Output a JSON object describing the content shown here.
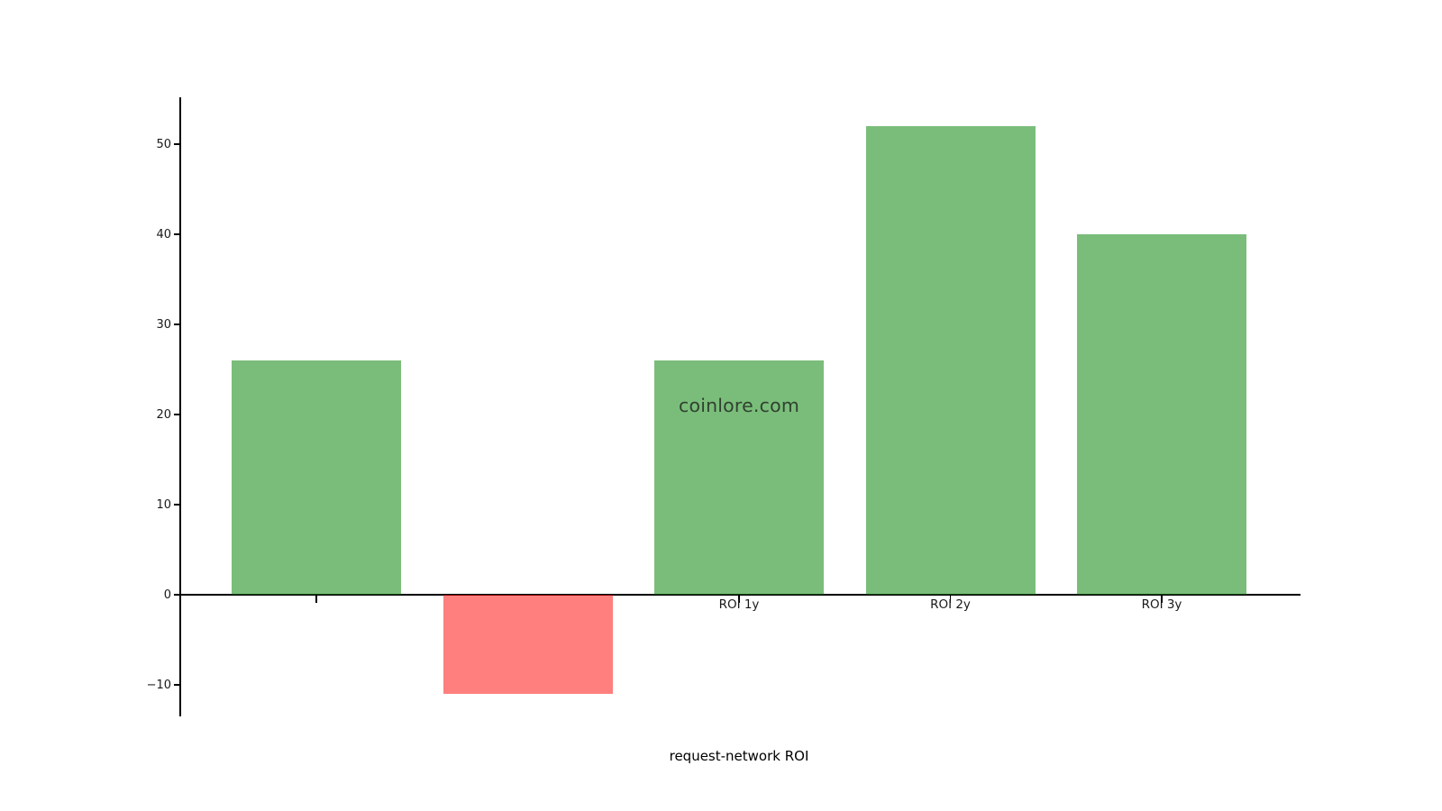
{
  "chart_data": {
    "type": "bar",
    "title": "request-network ROI",
    "watermark": "coinlore.com",
    "categories": [
      "",
      "",
      "ROI 1y",
      "ROI 2y",
      "ROI 3y"
    ],
    "values": [
      26,
      -11,
      26,
      52,
      40
    ],
    "xlabel": "",
    "ylabel": "",
    "ylim": [
      -14.2,
      55.2
    ],
    "grid": false,
    "legend": "none",
    "yticks": {
      "values": [
        50,
        40,
        30,
        20,
        10,
        0,
        -10
      ],
      "labels": [
        "50",
        "40",
        "30",
        "20",
        "10",
        "0",
        "−10"
      ]
    },
    "colors": {
      "positive_bar": "rgba(0, 128, 0, 0.52)",
      "negative_bar": "rgba(255, 0, 0, 0.5)",
      "positive_hex_on_white": "#7dbf80",
      "negative_hex_on_white": "#fe7f7f",
      "axis": "#000000",
      "tick_label": "#1a1a1a",
      "watermark_text": "rgba(25,30,25,0.78)",
      "background": "#ffffff"
    }
  }
}
